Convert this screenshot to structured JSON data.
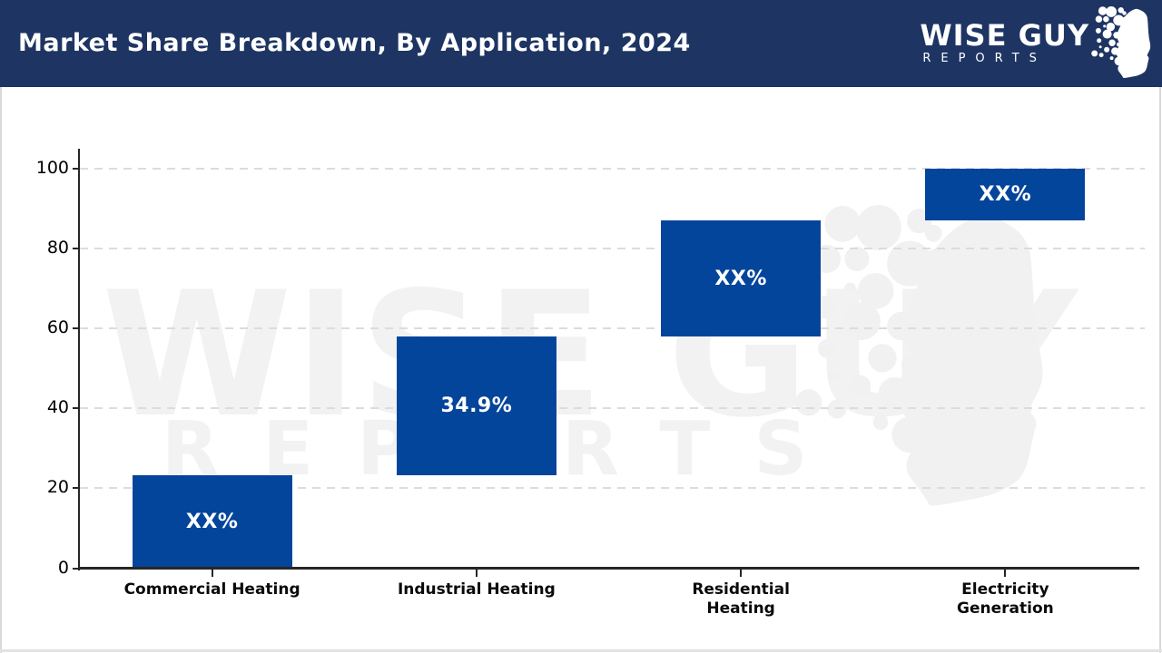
{
  "header": {
    "title": "Market Share Breakdown, By Application, 2024",
    "logo": {
      "wordmark": "WISE GUY",
      "tagline": "REPORTS"
    }
  },
  "watermark": {
    "wordmark": "WISE GUY",
    "tagline": "REPORTS"
  },
  "chart_data": {
    "type": "bar",
    "subtype": "floating-stacked-waterfall",
    "title": "Market Share Breakdown, By Application, 2024",
    "categories": [
      "Commercial Heating",
      "Industrial Heating",
      "Residential Heating",
      "Electricity Generation"
    ],
    "category_label_lines": [
      [
        "Commercial Heating"
      ],
      [
        "Industrial Heating"
      ],
      [
        "Residential",
        "Heating"
      ],
      [
        "Electricity",
        "Generation"
      ]
    ],
    "bar_labels": [
      "XX%",
      "34.9%",
      "XX%",
      "XX%"
    ],
    "segments": [
      {
        "category": "Commercial Heating",
        "start": 0,
        "end": 23.2,
        "label": "XX%"
      },
      {
        "category": "Industrial Heating",
        "start": 23.2,
        "end": 58.1,
        "label": "34.9%"
      },
      {
        "category": "Residential Heating",
        "start": 58.1,
        "end": 87.0,
        "label": "XX%"
      },
      {
        "category": "Electricity Generation",
        "start": 87.0,
        "end": 100.0,
        "label": "XX%"
      }
    ],
    "ylim": [
      0,
      105
    ],
    "yticks": [
      0,
      20,
      40,
      60,
      80,
      100
    ],
    "grid": {
      "horizontal": true,
      "style": "dashed",
      "color": "#dcdcdc"
    },
    "legend": "none",
    "xlabel": "",
    "ylabel": "",
    "bar_color": "#04459c",
    "bar_label_color": "#ffffff"
  },
  "colors": {
    "header_bg": "#1e3563",
    "title_text": "#ffffff",
    "bar": "#04459c",
    "axis": "#262626",
    "grid": "#dcdcdc",
    "watermark": "#f2f2f2",
    "page_border": "#d9d9d9"
  }
}
